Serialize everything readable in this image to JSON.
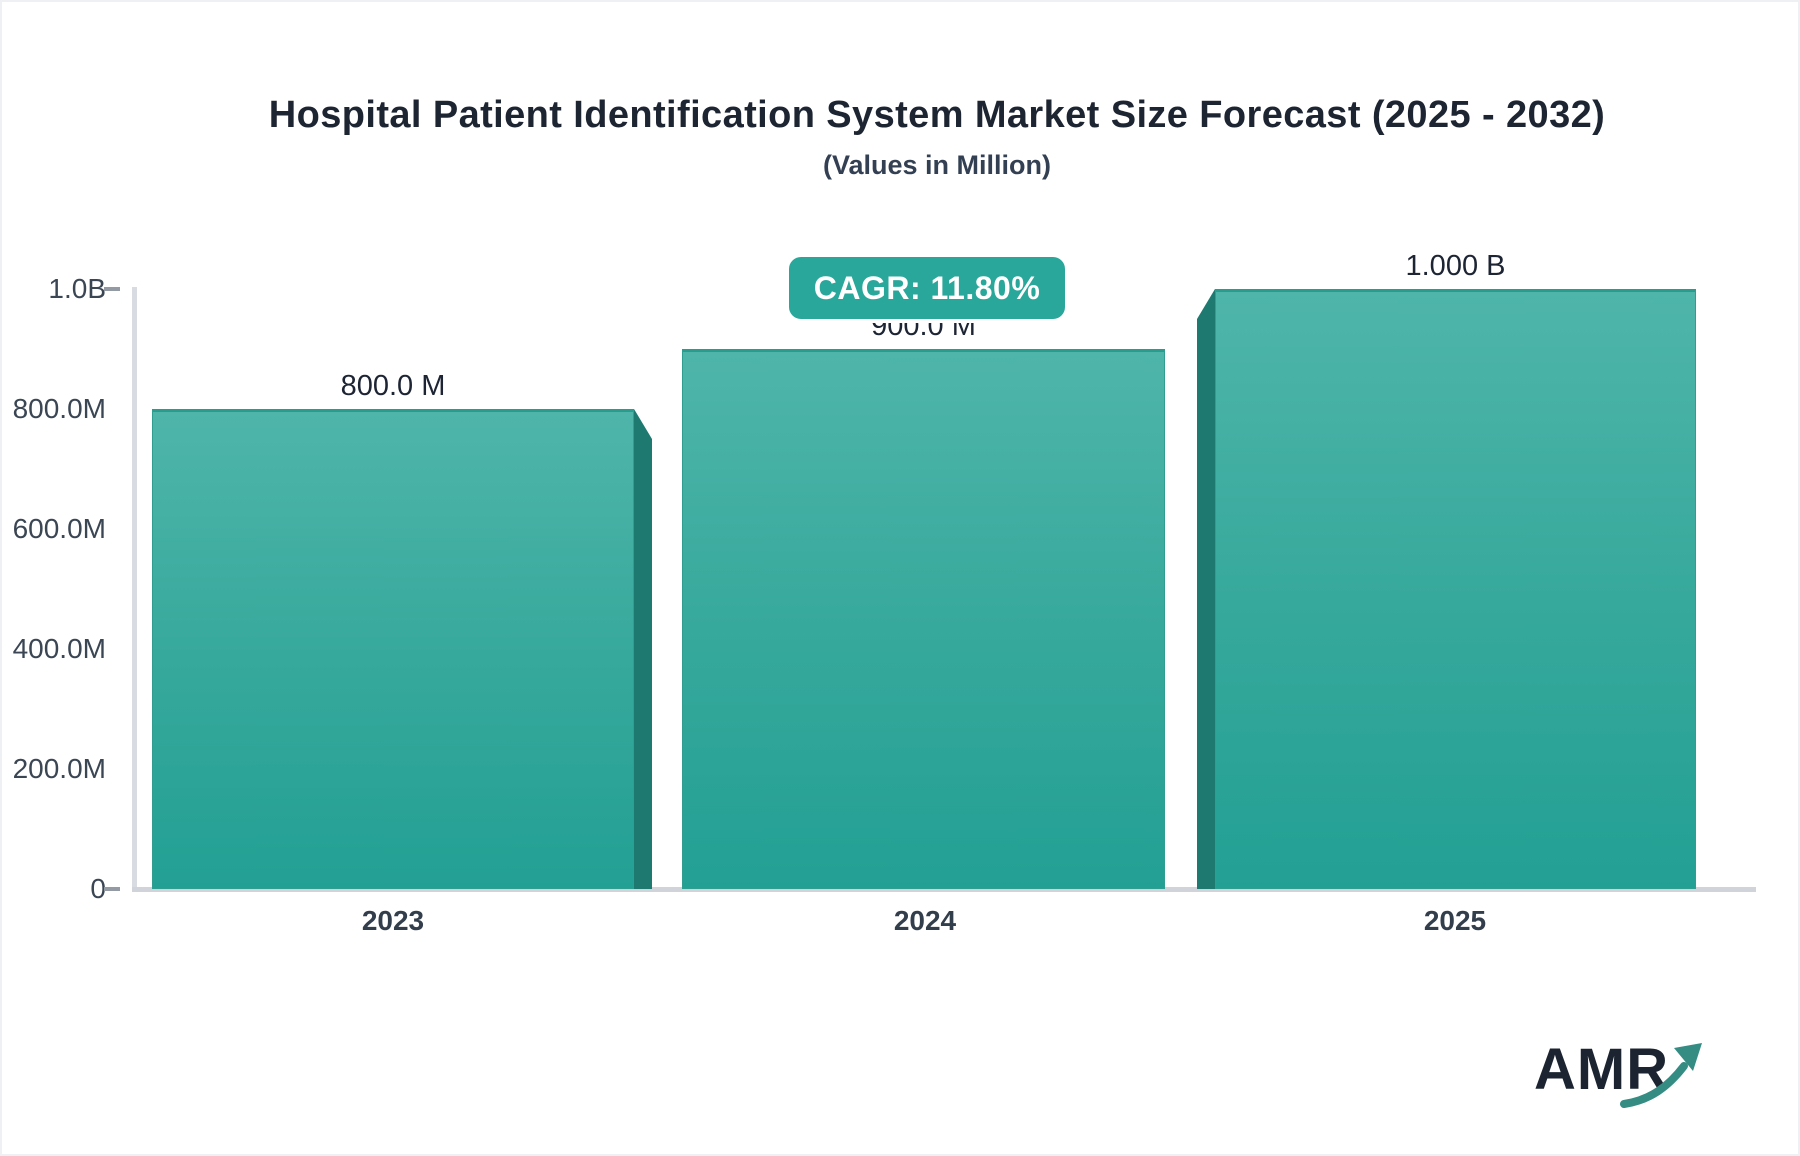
{
  "title": "Hospital Patient Identification System Market Size Forecast (2025 - 2032)",
  "subtitle": "(Values in Million)",
  "badge": {
    "label": "CAGR: 11.80%"
  },
  "branding": {
    "logo_text": "AMR",
    "logo_arrow": "up-right-trend-arrow"
  },
  "colors": {
    "accent_teal": "#2aa79b",
    "bar_gradient_top": "#4fb5aa",
    "bar_gradient_bottom": "#23a094",
    "bar_side_3d": "#1e7a70",
    "axis_line": "#d9dbe2",
    "baseline": "#d0d3da",
    "title_text": "#1e2532",
    "axis_text": "#3b4654",
    "logo_navy": "#1b2430",
    "logo_arrow_teal": "#348c83"
  },
  "chart_data": {
    "type": "bar",
    "title": "Hospital Patient Identification System Market Size Forecast (2025 - 2032)",
    "subtitle": "(Values in Million)",
    "categories": [
      "2023",
      "2024",
      "2025"
    ],
    "values_millions": [
      800,
      900,
      1000
    ],
    "bar_labels": [
      "800.0 M",
      "900.0 M",
      "1.000 B"
    ],
    "cagr_percent": 11.8,
    "y_axis": {
      "tick_labels": [
        "1.0B",
        "800.0M",
        "600.0M",
        "400.0M",
        "200.0M",
        "0"
      ],
      "min": 0,
      "max_millions": 1000
    },
    "grid": "off",
    "legend": "none",
    "bar_style": "3d-perspective-teal-gradient"
  }
}
